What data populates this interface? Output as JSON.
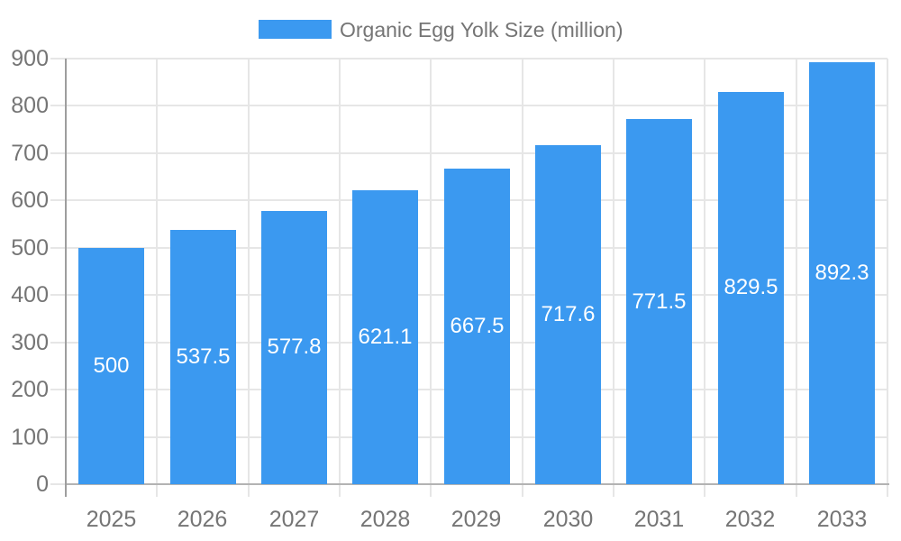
{
  "legend": {
    "label": "Organic Egg Yolk Size (million)"
  },
  "colors": {
    "bar": "#3B99F0",
    "grid": "#e6e6e6",
    "y_axis": "#9e9e9e",
    "x_axis": "#b3b3b3",
    "axis_text": "#757575",
    "value_text": "#ffffff",
    "background": "#ffffff"
  },
  "chart_data": {
    "type": "bar",
    "title": "Organic Egg Yolk Size (million)",
    "categories": [
      "2025",
      "2026",
      "2027",
      "2028",
      "2029",
      "2030",
      "2031",
      "2032",
      "2033"
    ],
    "values": [
      500,
      537.5,
      577.8,
      621.1,
      667.5,
      717.6,
      771.5,
      829.5,
      892.3
    ],
    "value_labels": [
      "500",
      "537.5",
      "577.8",
      "621.1",
      "667.5",
      "717.6",
      "771.5",
      "829.5",
      "892.3"
    ],
    "ytick_labels": [
      "0",
      "100",
      "200",
      "300",
      "400",
      "500",
      "600",
      "700",
      "800",
      "900"
    ],
    "yticks": [
      0,
      100,
      200,
      300,
      400,
      500,
      600,
      700,
      800,
      900
    ],
    "ylim": [
      0,
      900
    ],
    "xlabel": "",
    "ylabel": "",
    "grid": true,
    "legend_position": "top-center",
    "series_name": "Organic Egg Yolk Size (million)"
  }
}
